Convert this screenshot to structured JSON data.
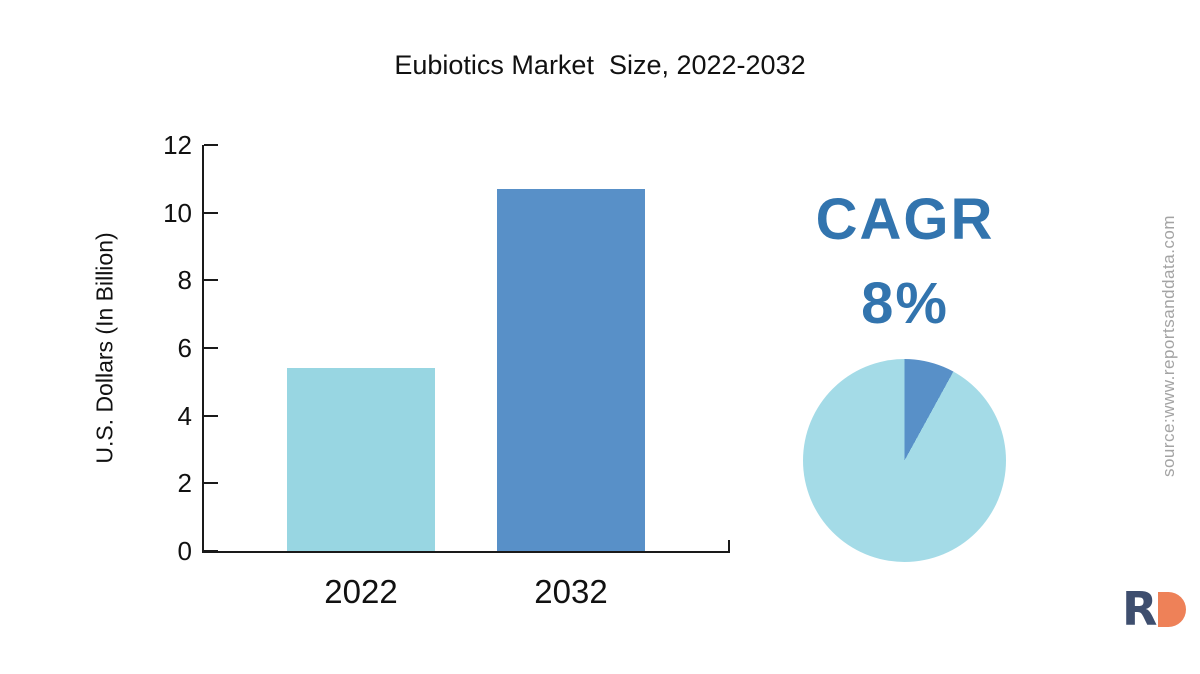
{
  "title": "Eubiotics Market  Size, 2022-2032",
  "chart_data": [
    {
      "type": "bar",
      "title": "Eubiotics Market  Size, 2022-2032",
      "categories": [
        "2022",
        "2032"
      ],
      "values": [
        5.4,
        10.7
      ],
      "xlabel": "",
      "ylabel": "U.S. Dollars (In Billion)",
      "ylim": [
        0,
        12
      ],
      "yticks": [
        0,
        2,
        4,
        6,
        8,
        10,
        12
      ],
      "bar_colors": [
        "#98d6e2",
        "#5890c8"
      ],
      "grid": false,
      "legend_position": "none"
    },
    {
      "type": "pie",
      "title": "CAGR 8%",
      "slices": [
        {
          "name": "CAGR",
          "value": 8,
          "color": "#5890c8"
        },
        {
          "name": "remainder",
          "value": 92,
          "color": "#a4dbe7"
        }
      ],
      "start_angle_deg": 0,
      "direction": "clockwise",
      "legend_position": "none"
    }
  ],
  "annotation": {
    "cagr_label": "CAGR",
    "cagr_value": "8%"
  },
  "source": {
    "text": "source:www.reportsanddata.com"
  },
  "logo": {
    "letter_r": "R",
    "d_shape": "d-half-circle",
    "r_color": "#3e4e6e",
    "d_color": "#ee8158"
  },
  "colors": {
    "accent_blue": "#3274ae",
    "bar_2022": "#98d6e2",
    "bar_2032": "#5890c8",
    "pie_light": "#a4dbe7",
    "axis": "#1a1a1a",
    "source_gray": "#a3a3a3"
  }
}
